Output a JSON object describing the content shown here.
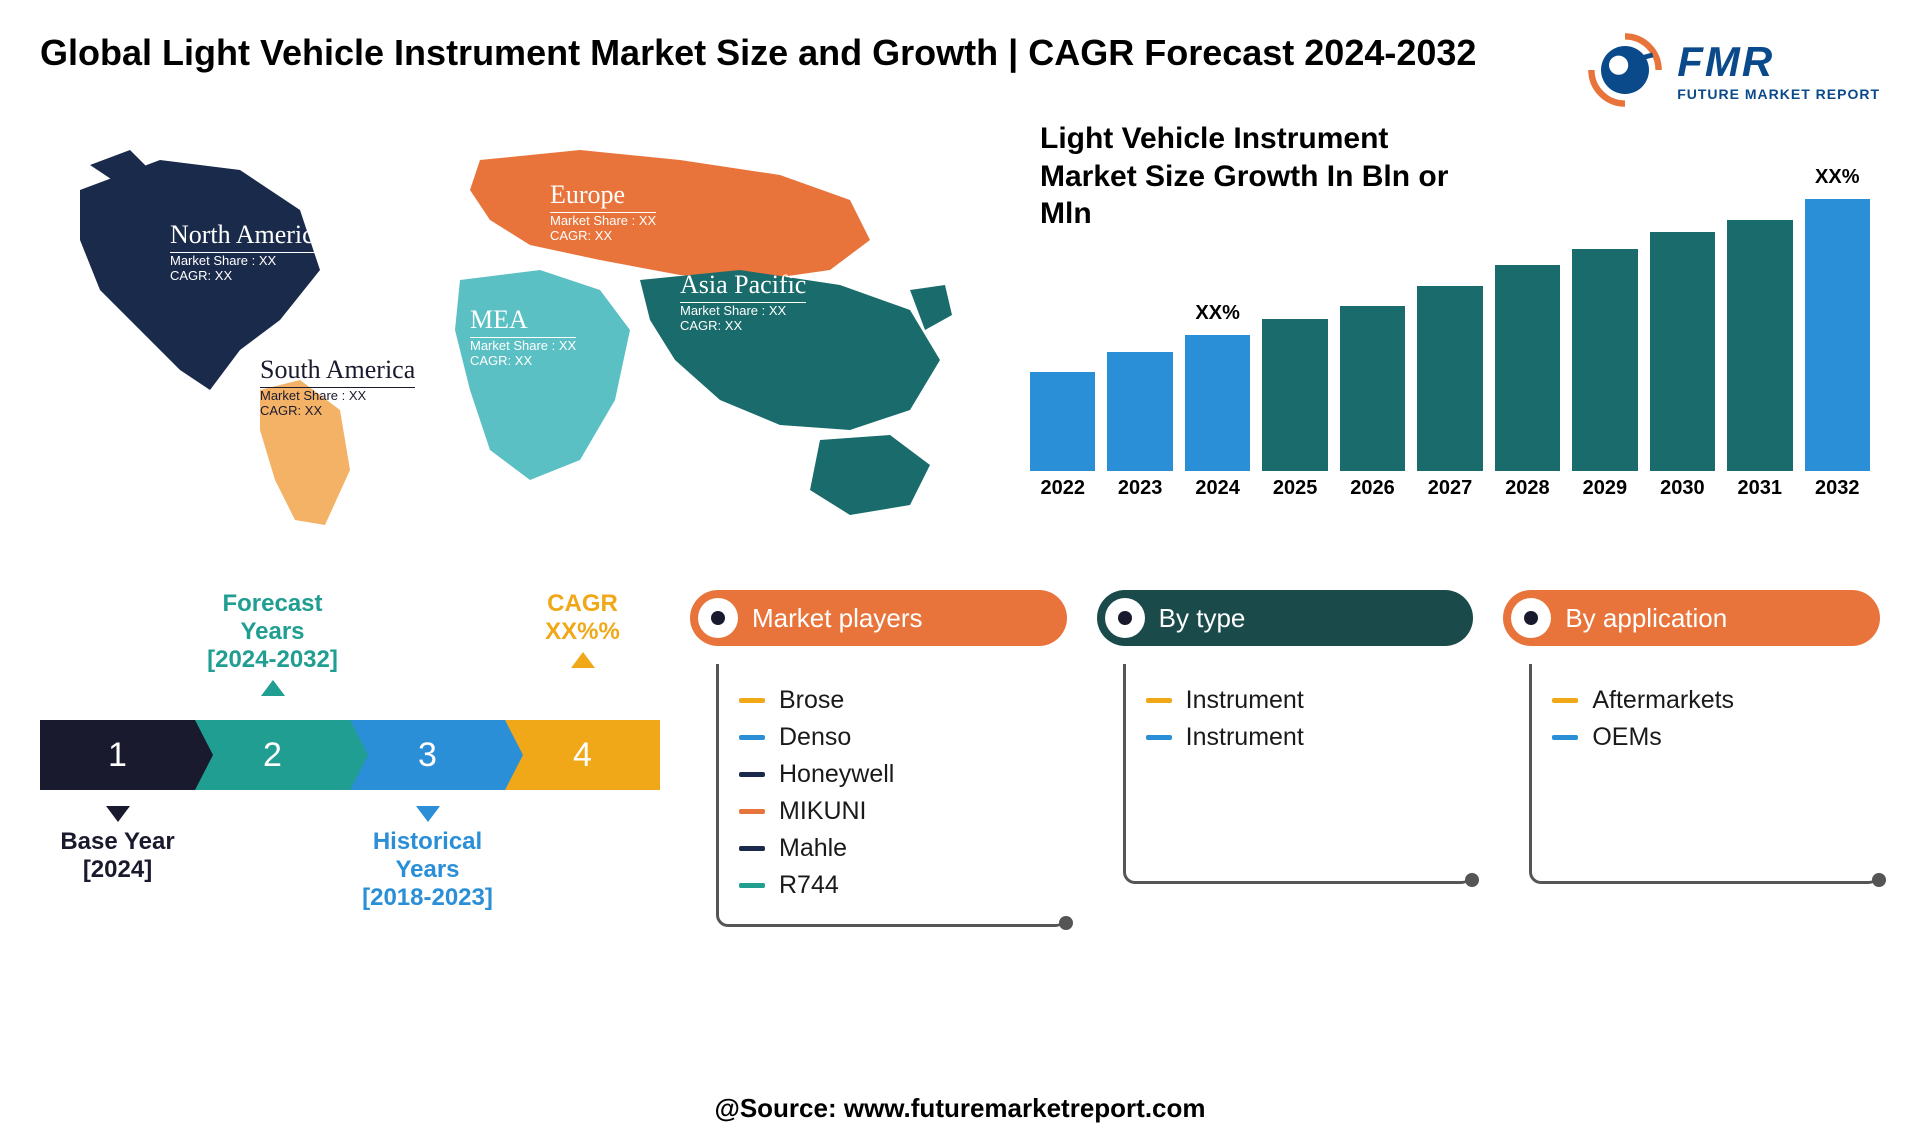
{
  "title": "Global Light Vehicle Instrument Market Size and Growth | CAGR Forecast 2024-2032",
  "logo": {
    "fmr": "FMR",
    "sub": "FUTURE MARKET REPORT"
  },
  "regions": {
    "north_america": {
      "name": "North America",
      "share": "Market Share : XX",
      "cagr": "CAGR: XX",
      "color": "#1a2a4a"
    },
    "south_america": {
      "name": "South America",
      "share": "Market Share : XX",
      "cagr": "CAGR: XX",
      "color": "#f4b266"
    },
    "europe": {
      "name": "Europe",
      "share": "Market Share : XX",
      "cagr": "CAGR: XX",
      "color": "#e8743b"
    },
    "mea": {
      "name": "MEA",
      "share": "Market Share : XX",
      "cagr": "CAGR: XX",
      "color": "#5bc0c4"
    },
    "asia_pacific": {
      "name": "Asia Pacific",
      "share": "Market Share : XX",
      "cagr": "CAGR: XX",
      "color": "#1a6b6b"
    }
  },
  "chart": {
    "title": "Light Vehicle Instrument Market Size Growth In Bln or Mln",
    "categories": [
      "2022",
      "2023",
      "2024",
      "2025",
      "2026",
      "2027",
      "2028",
      "2029",
      "2030",
      "2031",
      "2032"
    ],
    "values": [
      120,
      145,
      165,
      185,
      200,
      225,
      250,
      270,
      290,
      305,
      330
    ],
    "bar_colors": [
      "#2a8fd6",
      "#2a8fd6",
      "#2a8fd6",
      "#1a6b6b",
      "#1a6b6b",
      "#1a6b6b",
      "#1a6b6b",
      "#1a6b6b",
      "#1a6b6b",
      "#1a6b6b",
      "#2a8fd6"
    ],
    "ymax": 340,
    "labels": {
      "2": "XX%",
      "10": "XX%"
    },
    "label_fontsize": 20,
    "background": "#ffffff"
  },
  "timeline": {
    "forecast_label": "Forecast Years",
    "forecast_range": "[2024-2032]",
    "cagr_label": "CAGR",
    "cagr_value": "XX%%",
    "base_label": "Base Year",
    "base_range": "[2024]",
    "hist_label": "Historical Years",
    "hist_range": "[2018-2023]",
    "segs": [
      "1",
      "2",
      "3",
      "4"
    ],
    "colors": {
      "base": "#1a1a2e",
      "forecast": "#1f9e91",
      "hist": "#2a8fd6",
      "cagr": "#f0a818"
    }
  },
  "categories": [
    {
      "label": "Market players",
      "color": "#e8743b",
      "items": [
        {
          "name": "Brose",
          "dash": "#f0a818"
        },
        {
          "name": "Denso",
          "dash": "#2a8fd6"
        },
        {
          "name": "Honeywell",
          "dash": "#1a2a4a"
        },
        {
          "name": "MIKUNI",
          "dash": "#e8743b"
        },
        {
          "name": "Mahle",
          "dash": "#1a2a4a"
        },
        {
          "name": "R744",
          "dash": "#1f9e91"
        }
      ]
    },
    {
      "label": "By type",
      "color": "#1a4a4a",
      "items": [
        {
          "name": "Instrument",
          "dash": "#f0a818"
        },
        {
          "name": "Instrument",
          "dash": "#2a8fd6"
        }
      ]
    },
    {
      "label": "By application",
      "color": "#e8743b",
      "items": [
        {
          "name": "Aftermarkets",
          "dash": "#f0a818"
        },
        {
          "name": "OEMs",
          "dash": "#2a8fd6"
        }
      ]
    }
  ],
  "source": "@Source: www.futuremarketreport.com"
}
